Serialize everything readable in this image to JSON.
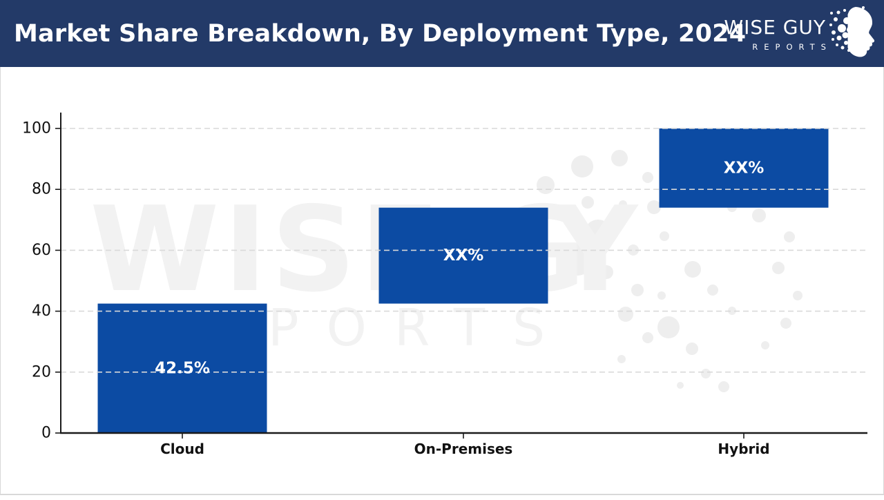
{
  "header": {
    "title": "Market Share Breakdown, By Deployment Type, 2024",
    "logo": {
      "brand_top": "WISE GUY",
      "brand_bottom": "REPORTS"
    }
  },
  "watermark": {
    "top": "WISE G",
    "top_tail": "Y",
    "bottom": "PORTS"
  },
  "colors": {
    "header_bg": "#233a68",
    "bar": "#0c4ba3",
    "grid": "#d9d9d9",
    "axis": "#1a1a1a",
    "watermark": "#f2f2f2"
  },
  "chart_data": {
    "type": "bar",
    "subtype": "floating-waterfall",
    "title": "Market Share Breakdown, By Deployment Type, 2024",
    "categories": [
      "Cloud",
      "On-Premises",
      "Hybrid"
    ],
    "bars": [
      {
        "category": "Cloud",
        "base": 0,
        "top": 42.5,
        "label": "42.5%"
      },
      {
        "category": "On-Premises",
        "base": 42.5,
        "top": 74,
        "label": "XX%"
      },
      {
        "category": "Hybrid",
        "base": 74,
        "top": 100,
        "label": "XX%"
      }
    ],
    "xlabel": "",
    "ylabel": "",
    "ylim": [
      0,
      100
    ],
    "yticks": [
      0,
      20,
      40,
      60,
      80,
      100
    ],
    "grid": "horizontal-dashed",
    "legend": "none",
    "bar_color": "#0c4ba3"
  }
}
